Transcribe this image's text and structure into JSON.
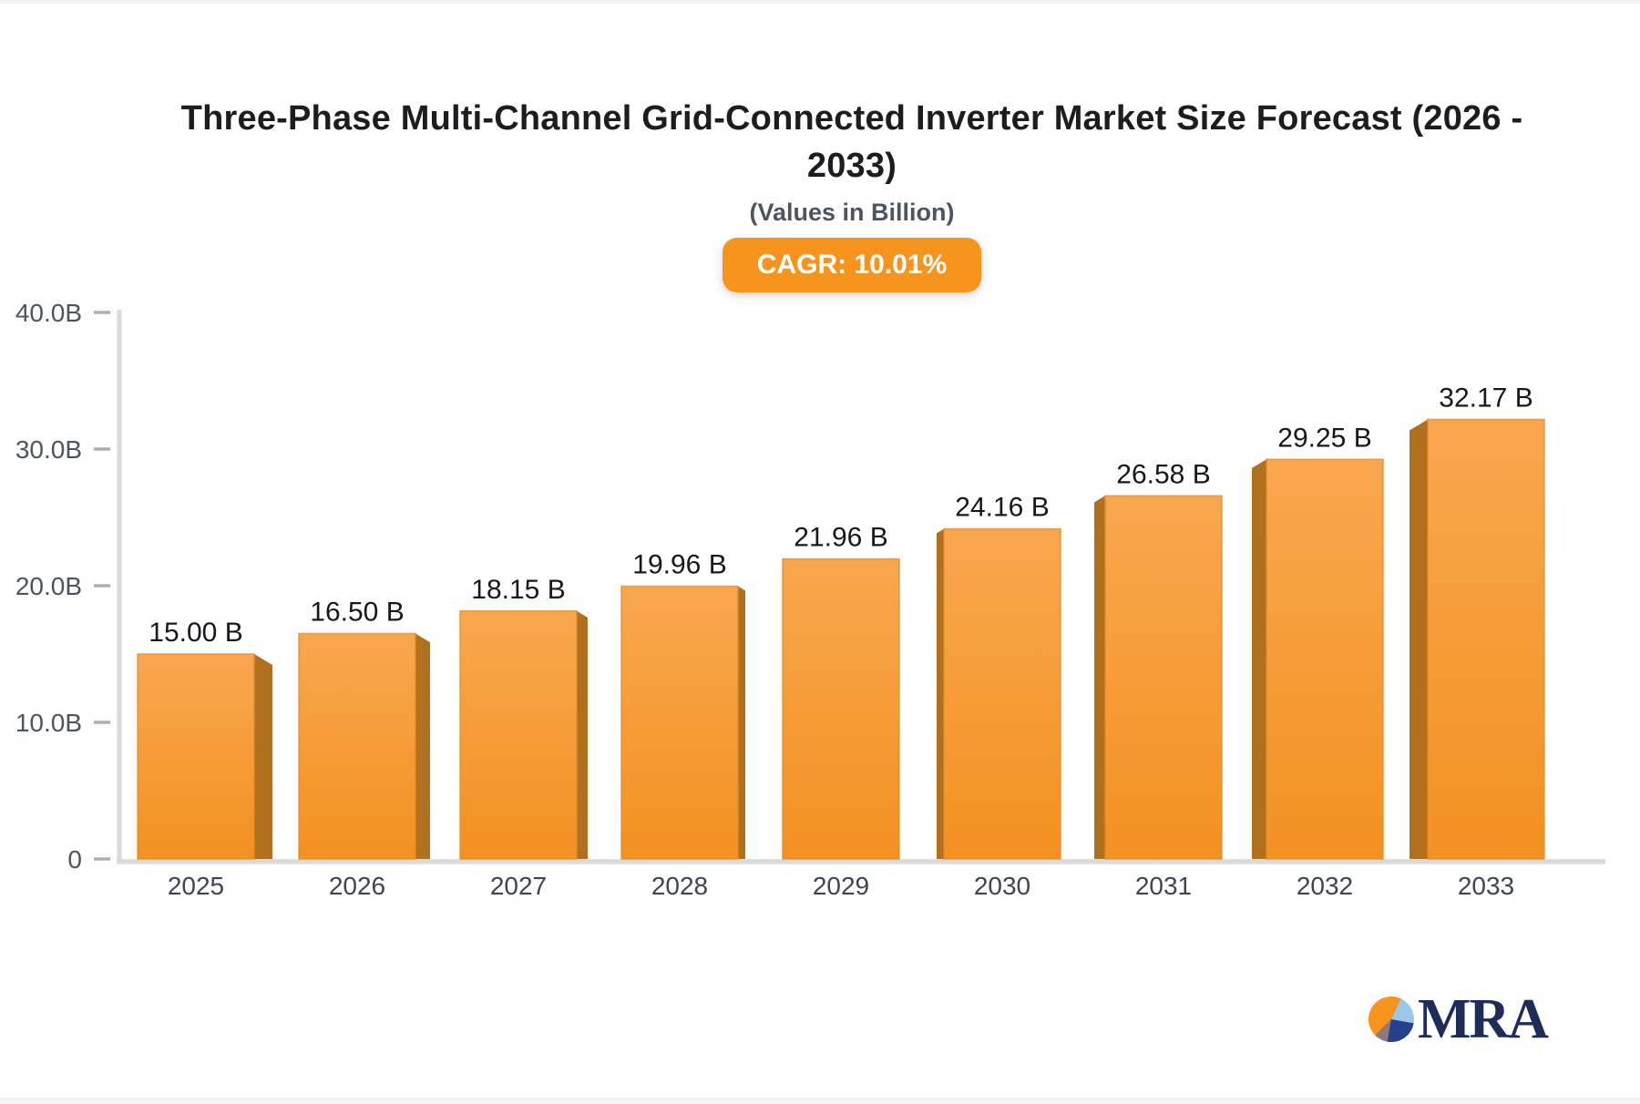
{
  "header": {
    "title": "Three-Phase Multi-Channel Grid-Connected Inverter Market Size Forecast (2026 - 2033)",
    "title_line1": "Three-Phase Multi-Channel Grid-Connected Inverter Market Size Forecast (2026 -",
    "title_line2": "2033)",
    "subtitle": "(Values in Billion)",
    "cagr_badge": {
      "label": "CAGR: 10.01%",
      "bg_color": "#f7941e",
      "text_color": "#ffffff"
    }
  },
  "chart_data": {
    "type": "bar",
    "style": "3d-perspective",
    "title": "Three-Phase Multi-Channel Grid-Connected Inverter Market Size Forecast (2026 - 2033)",
    "subtitle": "(Values in Billion)",
    "xlabel": "",
    "ylabel": "",
    "categories": [
      "2025",
      "2026",
      "2027",
      "2028",
      "2029",
      "2030",
      "2031",
      "2032",
      "2033"
    ],
    "values": [
      15.0,
      16.5,
      18.15,
      19.96,
      21.96,
      24.16,
      26.58,
      29.25,
      32.17
    ],
    "value_labels": [
      "15.00 B",
      "16.50 B",
      "18.15 B",
      "19.96 B",
      "21.96 B",
      "24.16 B",
      "26.58 B",
      "29.25 B",
      "32.17 B"
    ],
    "ylim": [
      0,
      40
    ],
    "yticks": [
      {
        "value": 0,
        "label": "0"
      },
      {
        "value": 10,
        "label": "10.0B"
      },
      {
        "value": 20,
        "label": "20.0B"
      },
      {
        "value": 30,
        "label": "30.0B"
      },
      {
        "value": 40,
        "label": "40.0B"
      }
    ],
    "grid": false,
    "legend": null,
    "colors": {
      "bar_front_top": "#f8a74f",
      "bar_front_bottom": "#f39120",
      "bar_outline": "#e18c2b",
      "bar_side": "#b0701e",
      "axis_line": "#d8dade",
      "tick_dash": "#9aa1ac",
      "tick_label": "#4b5563",
      "category_label": "#3d4554",
      "value_label": "#15181d"
    }
  },
  "logo": {
    "text": "MRA",
    "text_color": "#1e2c5a",
    "pie_colors": {
      "orange": "#f7941e",
      "light_blue": "#9cc7e8",
      "navy": "#26408e",
      "maroon": "#94767d"
    }
  }
}
